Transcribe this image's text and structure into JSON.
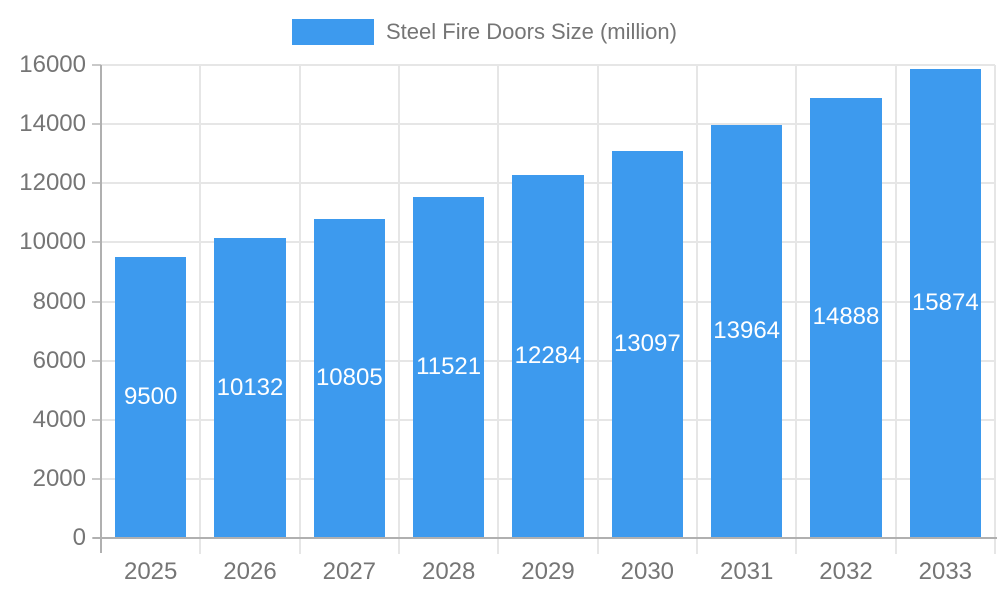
{
  "chart_data": {
    "type": "bar",
    "title": "Steel Fire Doors Size (million)",
    "legend": {
      "position": "top",
      "entries": [
        "Steel Fire Doors Size (million)"
      ]
    },
    "categories": [
      "2025",
      "2026",
      "2027",
      "2028",
      "2029",
      "2030",
      "2031",
      "2032",
      "2033"
    ],
    "series": [
      {
        "name": "Steel Fire Doors Size (million)",
        "values": [
          9500,
          10132,
          10805,
          11521,
          12284,
          13097,
          13964,
          14888,
          15874
        ]
      }
    ],
    "xlabel": "",
    "ylabel": "",
    "ylim": [
      0,
      16000
    ],
    "yticks": [
      0,
      2000,
      4000,
      6000,
      8000,
      10000,
      12000,
      14000,
      16000
    ],
    "grid": true,
    "bar_value_labels_shown": true
  },
  "colors": {
    "bar": "#3D9AEE",
    "axis_line": "#B0B0B0",
    "gridline": "#E6E6E6",
    "tick": "#C9C9C9",
    "axis_label_text": "#757575",
    "bar_label_text": "#FFFFFF",
    "background": "#FFFFFF"
  }
}
